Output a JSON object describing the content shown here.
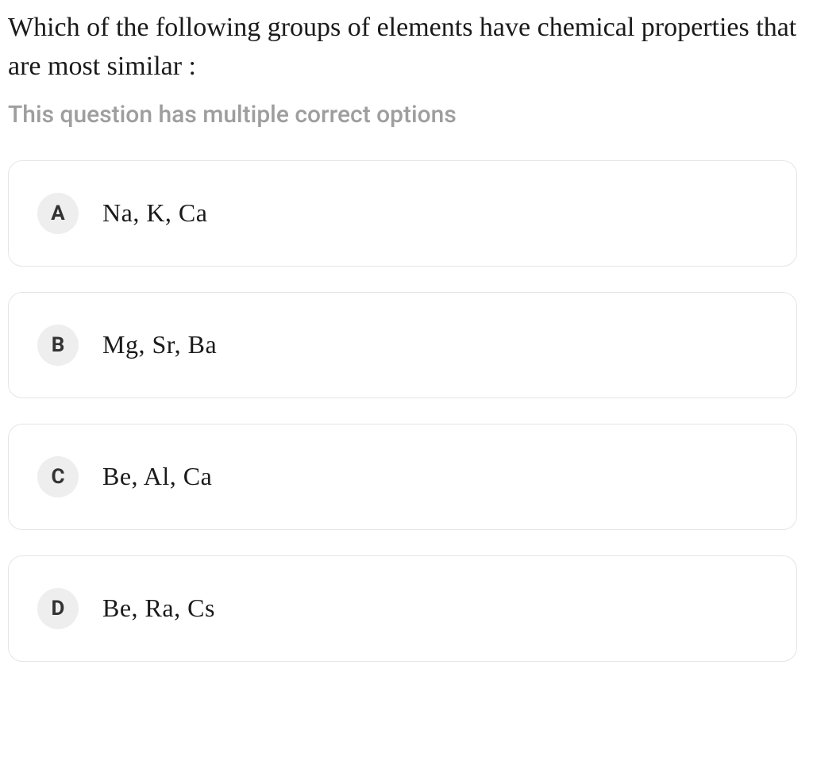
{
  "question": {
    "text": "Which of the following groups of elements have chemical properties that are most similar :",
    "hint": "This question has multiple correct options"
  },
  "options": [
    {
      "letter": "A",
      "text": "Na, K, Ca"
    },
    {
      "letter": "B",
      "text": "Mg, Sr, Ba"
    },
    {
      "letter": "C",
      "text": "Be, Al, Ca"
    },
    {
      "letter": "D",
      "text": "Be, Ra, Cs"
    }
  ],
  "styles": {
    "question_fontsize": 34,
    "hint_fontsize": 30,
    "option_fontsize": 32,
    "letter_badge_bg": "#eeeeee",
    "letter_badge_size": 52,
    "option_border_color": "#e5e5e5",
    "option_border_radius": 18,
    "hint_color": "#9e9e9e",
    "text_color": "#1a1a1a",
    "background": "#ffffff",
    "option_gap": 32,
    "option_padding_v": 40,
    "option_padding_h": 36
  }
}
